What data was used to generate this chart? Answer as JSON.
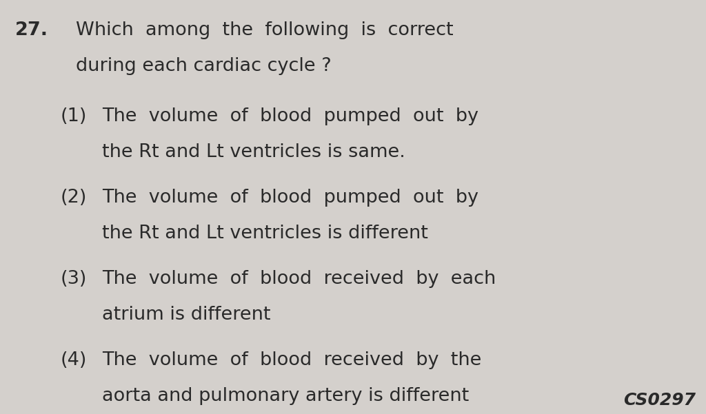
{
  "background_color": "#d4d0cc",
  "text_color": "#2a2a2a",
  "question_number": "27.",
  "question_line1": "Which  among  the  following  is  correct",
  "question_line2": "during each cardiac cycle ?",
  "options": [
    {
      "number": "(1)",
      "line1": "The  volume  of  blood  pumped  out  by",
      "line2": "the Rt and Lt ventricles is same."
    },
    {
      "number": "(2)",
      "line1": "The  volume  of  blood  pumped  out  by",
      "line2": "the Rt and Lt ventricles is different"
    },
    {
      "number": "(3)",
      "line1": "The  volume  of  blood  received  by  each",
      "line2": "atrium is different"
    },
    {
      "number": "(4)",
      "line1": "The  volume  of  blood  received  by  the",
      "line2": "aorta and pulmonary artery is different"
    }
  ],
  "code": "CS0297",
  "font_size_question": 19.5,
  "font_size_options": 19.5,
  "font_size_code": 18,
  "figwidth": 10.24,
  "figheight": 6.01,
  "dpi": 100
}
